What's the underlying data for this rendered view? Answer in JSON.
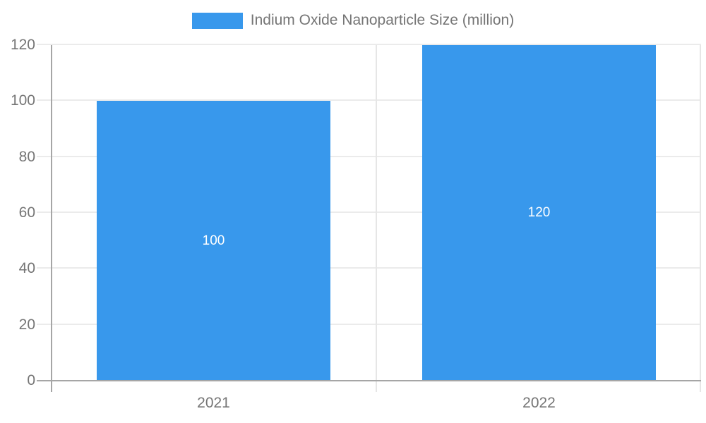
{
  "chart_data": {
    "type": "bar",
    "title": "",
    "legend_position": "top",
    "legend": [
      "Indium Oxide Nanoparticle Size (million)"
    ],
    "categories": [
      "2021",
      "2022"
    ],
    "series": [
      {
        "name": "Indium Oxide Nanoparticle Size (million)",
        "values": [
          100,
          120
        ],
        "data_labels": [
          "100",
          "120"
        ]
      }
    ],
    "ylabel": "",
    "xlabel": "",
    "ylim": [
      0,
      120
    ],
    "yticks": [
      0,
      20,
      40,
      60,
      80,
      100,
      120
    ],
    "grid": true,
    "colors": {
      "bar": "#3898ec",
      "bar_label_text": "#ffffff",
      "axis_line": "#a6a6a6",
      "gridline": "#ebebeb",
      "tick_text": "#757575",
      "legend_text": "#757575",
      "background": "#ffffff"
    }
  }
}
